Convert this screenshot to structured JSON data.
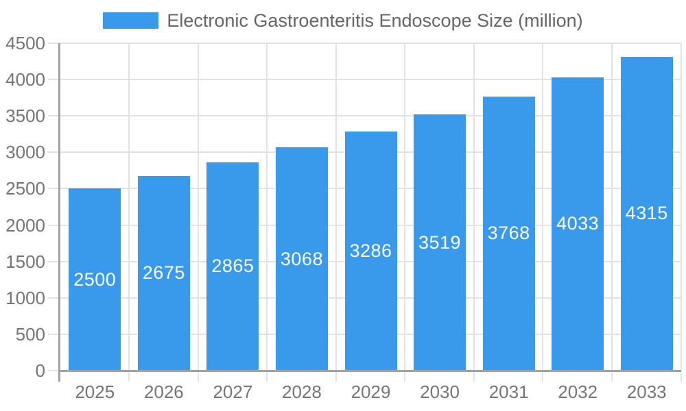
{
  "chart_data": {
    "type": "bar",
    "title": "Electronic Gastroenteritis Endoscope Size (million)",
    "legend_position": "top",
    "categories": [
      "2025",
      "2026",
      "2027",
      "2028",
      "2029",
      "2030",
      "2031",
      "2032",
      "2033"
    ],
    "values": [
      2500,
      2675,
      2865,
      3068,
      3286,
      3519,
      3768,
      4033,
      4315
    ],
    "xlabel": "",
    "ylabel": "",
    "ylim": [
      0,
      4500
    ],
    "ytick_step": 500,
    "yticks": [
      0,
      500,
      1000,
      1500,
      2000,
      2500,
      3000,
      3500,
      4000,
      4500
    ],
    "grid": true,
    "value_label_position": "inside-center",
    "colors": {
      "bar": "#399AEC",
      "value_label": "#FFFFFF",
      "grid": "#E3E3E3",
      "axis_line": "#A2A2A2",
      "tick_label": "#757575",
      "legend_text": "#666666",
      "background": "#FFFFFF"
    }
  }
}
